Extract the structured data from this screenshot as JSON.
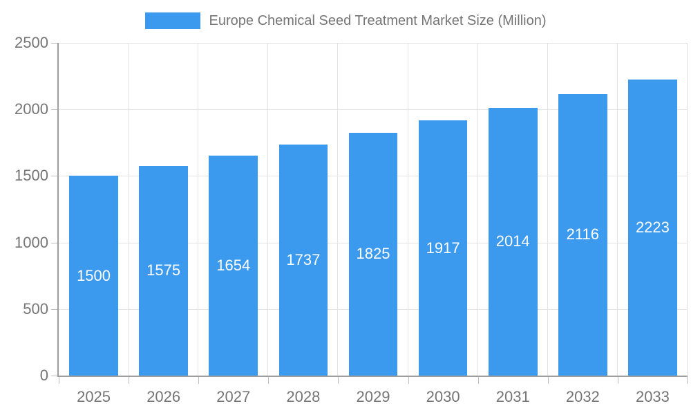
{
  "chart": {
    "legend_label": "Europe Chemical Seed Treatment Market Size (Million)"
  },
  "chart_data": {
    "type": "bar",
    "title": "Europe Chemical Seed Treatment Market Size (Million)",
    "categories": [
      "2025",
      "2026",
      "2027",
      "2028",
      "2029",
      "2030",
      "2031",
      "2032",
      "2033"
    ],
    "values": [
      1500,
      1575,
      1654,
      1737,
      1825,
      1917,
      2014,
      2116,
      2223
    ],
    "xlabel": "",
    "ylabel": "",
    "ylim": [
      0,
      2500
    ],
    "yticks": [
      0,
      500,
      1000,
      1500,
      2000,
      2500
    ],
    "grid": true,
    "legend_position": "top-center",
    "bar_label_position": "center-inside",
    "colors": {
      "bar": "#3b99ee",
      "bar_label": "#ffffff",
      "axis_text": "#757575",
      "legend_text": "#757575",
      "gridline": "#e3e3e3",
      "axis_line": "#9e9e9e",
      "background": "#ffffff"
    }
  }
}
